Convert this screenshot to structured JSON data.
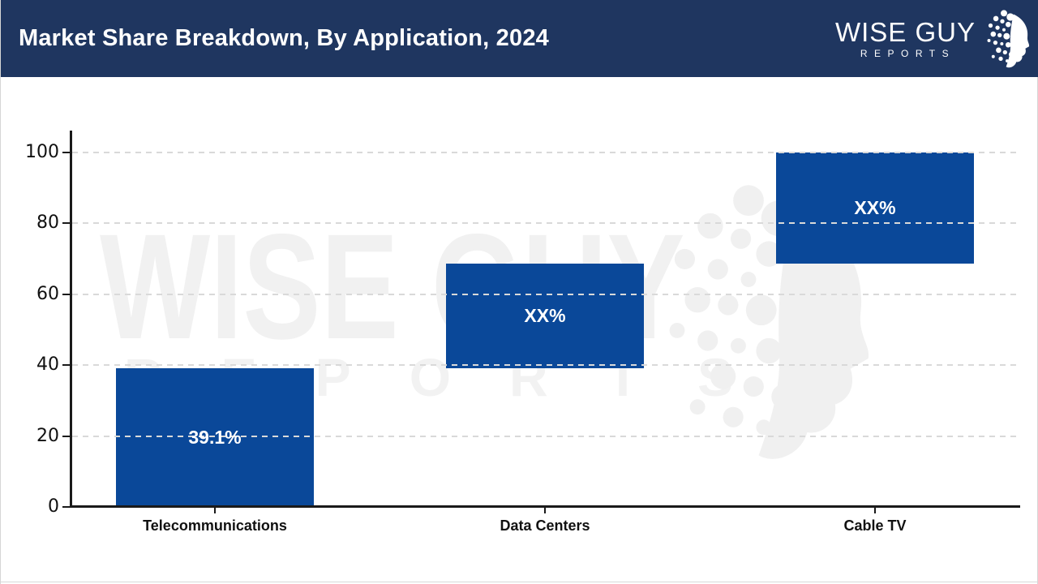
{
  "header": {
    "title": "Market Share Breakdown, By Application, 2024",
    "logo": {
      "line1": "WISE GUY",
      "line2": "REPORTS"
    }
  },
  "watermark": {
    "line1": "WISE GUY",
    "line2": "REPORTS"
  },
  "colors": {
    "header_bg": "#1f3660",
    "bar": "#0a4899",
    "gridline": "#d9d9d9",
    "axis": "#1a1a1a",
    "watermark": "#f1f1f1",
    "bar_label": "#ffffff"
  },
  "chart_data": {
    "type": "bar",
    "subtype": "floating-waterfall",
    "title": "Market Share Breakdown, By Application, 2024",
    "categories": [
      "Telecommunications",
      "Data Centers",
      "Cable TV"
    ],
    "segments": [
      {
        "category": "Telecommunications",
        "start": 0,
        "end": 39.1,
        "label": "39.1%"
      },
      {
        "category": "Data Centers",
        "start": 39.1,
        "end": 68.6,
        "label": "XX%"
      },
      {
        "category": "Cable TV",
        "start": 68.6,
        "end": 100,
        "label": "XX%"
      }
    ],
    "xlabel": "",
    "ylabel": "",
    "ylim": [
      0,
      106
    ],
    "yticks": [
      0,
      20,
      40,
      60,
      80,
      100
    ],
    "grid": "horizontal-dashed",
    "legend": "none",
    "bar_color": "#0a4899",
    "label_color": "#ffffff"
  }
}
